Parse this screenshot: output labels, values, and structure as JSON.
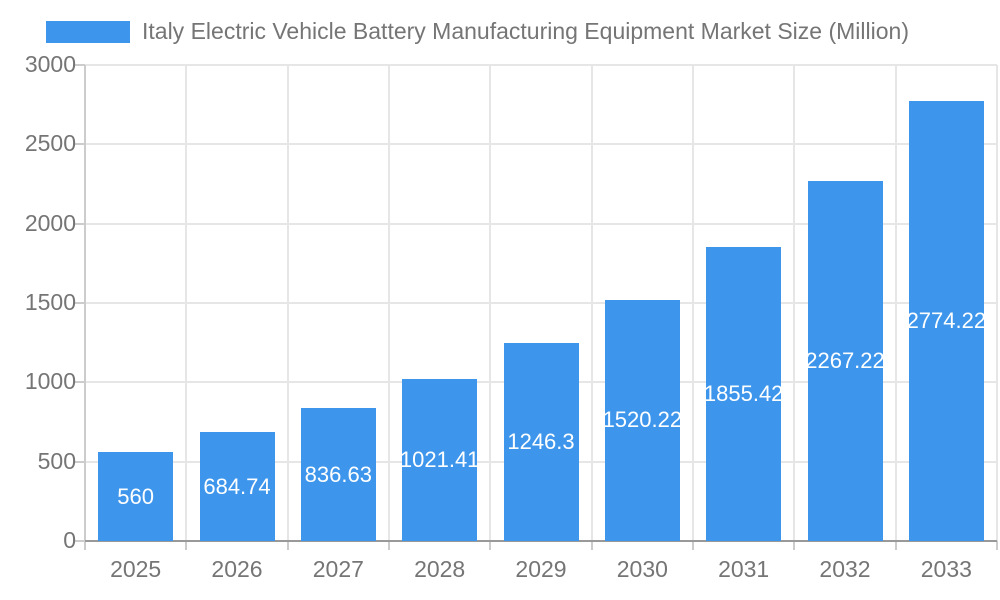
{
  "legend": {
    "label": "Italy Electric Vehicle Battery Manufacturing Equipment Market Size (Million)",
    "swatch_color": "#3E96EC"
  },
  "chart_data": {
    "type": "bar",
    "title": "Italy Electric Vehicle Battery Manufacturing Equipment Market Size (Million)",
    "categories": [
      "2025",
      "2026",
      "2027",
      "2028",
      "2029",
      "2030",
      "2031",
      "2032",
      "2033"
    ],
    "values": [
      560,
      684.74,
      836.63,
      1021.41,
      1246.3,
      1520.22,
      1855.42,
      2267.22,
      2774.22
    ],
    "bar_labels": [
      "560",
      "684.74",
      "836.63",
      "1021.41",
      "1246.3",
      "1520.22",
      "1855.42",
      "2267.22",
      "2774.22"
    ],
    "xlabel": "",
    "ylabel": "",
    "ylim": [
      0,
      3000
    ],
    "yticks": [
      0,
      500,
      1000,
      1500,
      2000,
      2500,
      3000
    ],
    "grid": true,
    "legend_position": "top",
    "bar_color": "#3E96EC",
    "bar_label_color": "#ffffff",
    "axis_text_color": "#757575",
    "gridline_color": "#e6e6e6"
  }
}
